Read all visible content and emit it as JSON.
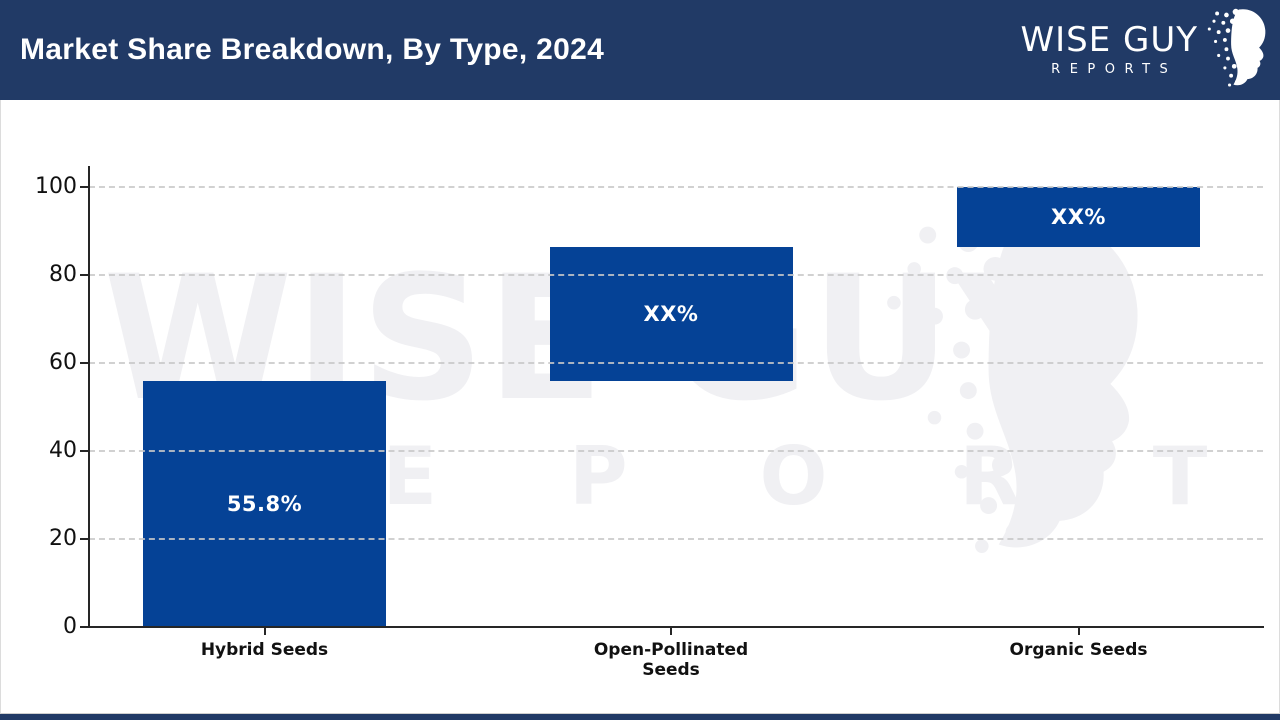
{
  "header": {
    "title": "Market Share Breakdown, By Type, 2024",
    "logo": {
      "line1": "WISE GUY",
      "line2": "REPORTS",
      "icon": "dot-face-logo"
    }
  },
  "watermark": {
    "line1": "WISE GUY",
    "line2": "R E P O R T S",
    "icon": "dot-face-watermark"
  },
  "colors": {
    "header_bg": "#213A66",
    "bar": "#054296",
    "axis": "#262626",
    "gridline": "#c9c9c9",
    "bar_label_text": "#ffffff",
    "watermark": "#f0f0f3"
  },
  "chart_data": {
    "type": "bar",
    "variant": "waterfall",
    "title": "Market Share Breakdown, By Type, 2024",
    "categories": [
      "Hybrid Seeds",
      "Open-Pollinated Seeds",
      "Organic Seeds"
    ],
    "bars": [
      {
        "category": "Hybrid Seeds",
        "label": "55.8%",
        "start": 0,
        "end": 55.8
      },
      {
        "category": "Open-Pollinated Seeds",
        "label": "XX%",
        "start": 55.8,
        "end": 86.3
      },
      {
        "category": "Organic Seeds",
        "label": "XX%",
        "start": 86.3,
        "end": 100
      }
    ],
    "xlabel": "",
    "ylabel": "",
    "ylim": [
      0,
      100
    ],
    "yticks": [
      0,
      20,
      40,
      60,
      80,
      100
    ],
    "grid": "horizontal dashed, drawn over bars",
    "legend": "none"
  }
}
